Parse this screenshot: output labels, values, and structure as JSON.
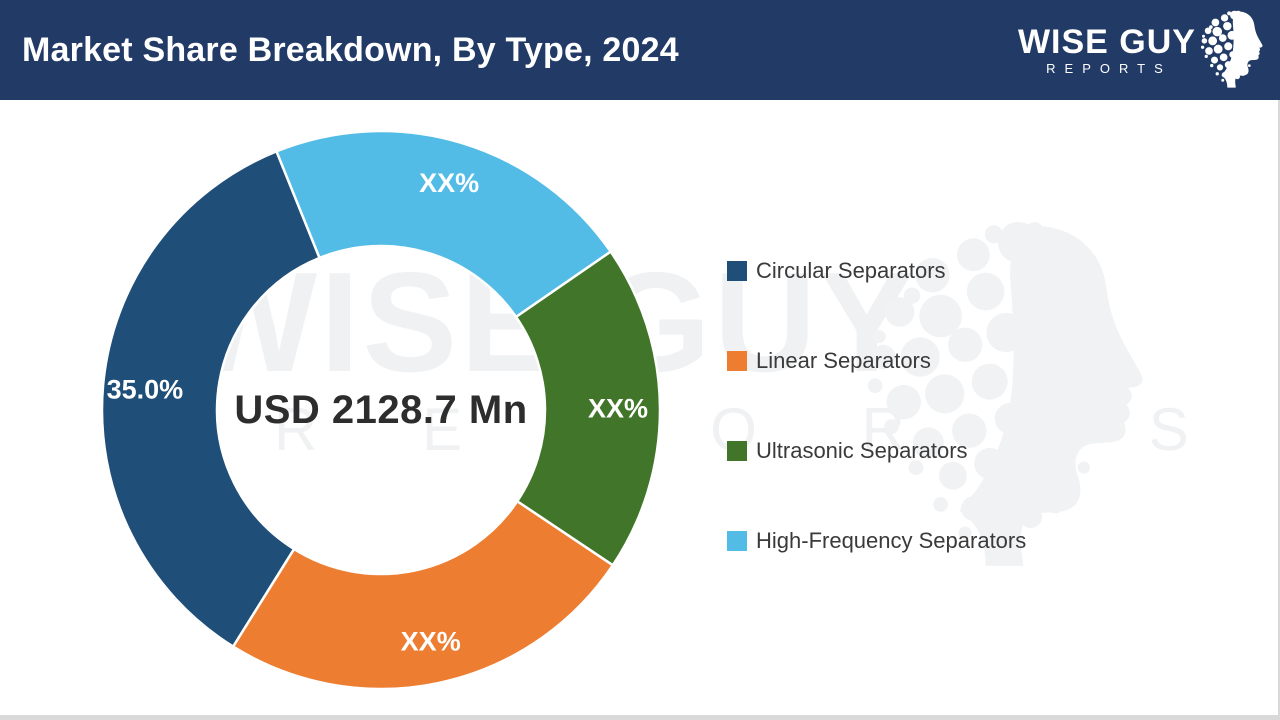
{
  "header": {
    "title": "Market Share Breakdown, By Type, 2024",
    "background": "#213a66",
    "logo": {
      "line1": "WISE GUY",
      "line2": "REPORTS"
    }
  },
  "watermark": {
    "line1": "WISE GUY",
    "line2": "R E P O R T S"
  },
  "chart_data": {
    "type": "pie",
    "subtype": "donut",
    "title": "Market Share Breakdown, By Type, 2024",
    "center_label": "USD 2128.7 Mn",
    "categories": [
      "Circular Separators",
      "Linear Separators",
      "Ultrasonic Separators",
      "High-Frequency Separators"
    ],
    "values_pct": [
      35.0,
      24.5,
      19.0,
      21.5
    ],
    "values_estimated": [
      false,
      true,
      true,
      true
    ],
    "slice_labels": [
      "35.0%",
      "XX%",
      "XX%",
      "XX%"
    ],
    "colors": [
      "#1F4E78",
      "#ED7D31",
      "#41762A",
      "#53BCE6"
    ],
    "start_angle_deg": 112,
    "direction": "counterclockwise",
    "legend_position": "right",
    "label_color": "#ffffff"
  },
  "frame": {
    "bottom_strip_color": "#d9d9d9"
  }
}
